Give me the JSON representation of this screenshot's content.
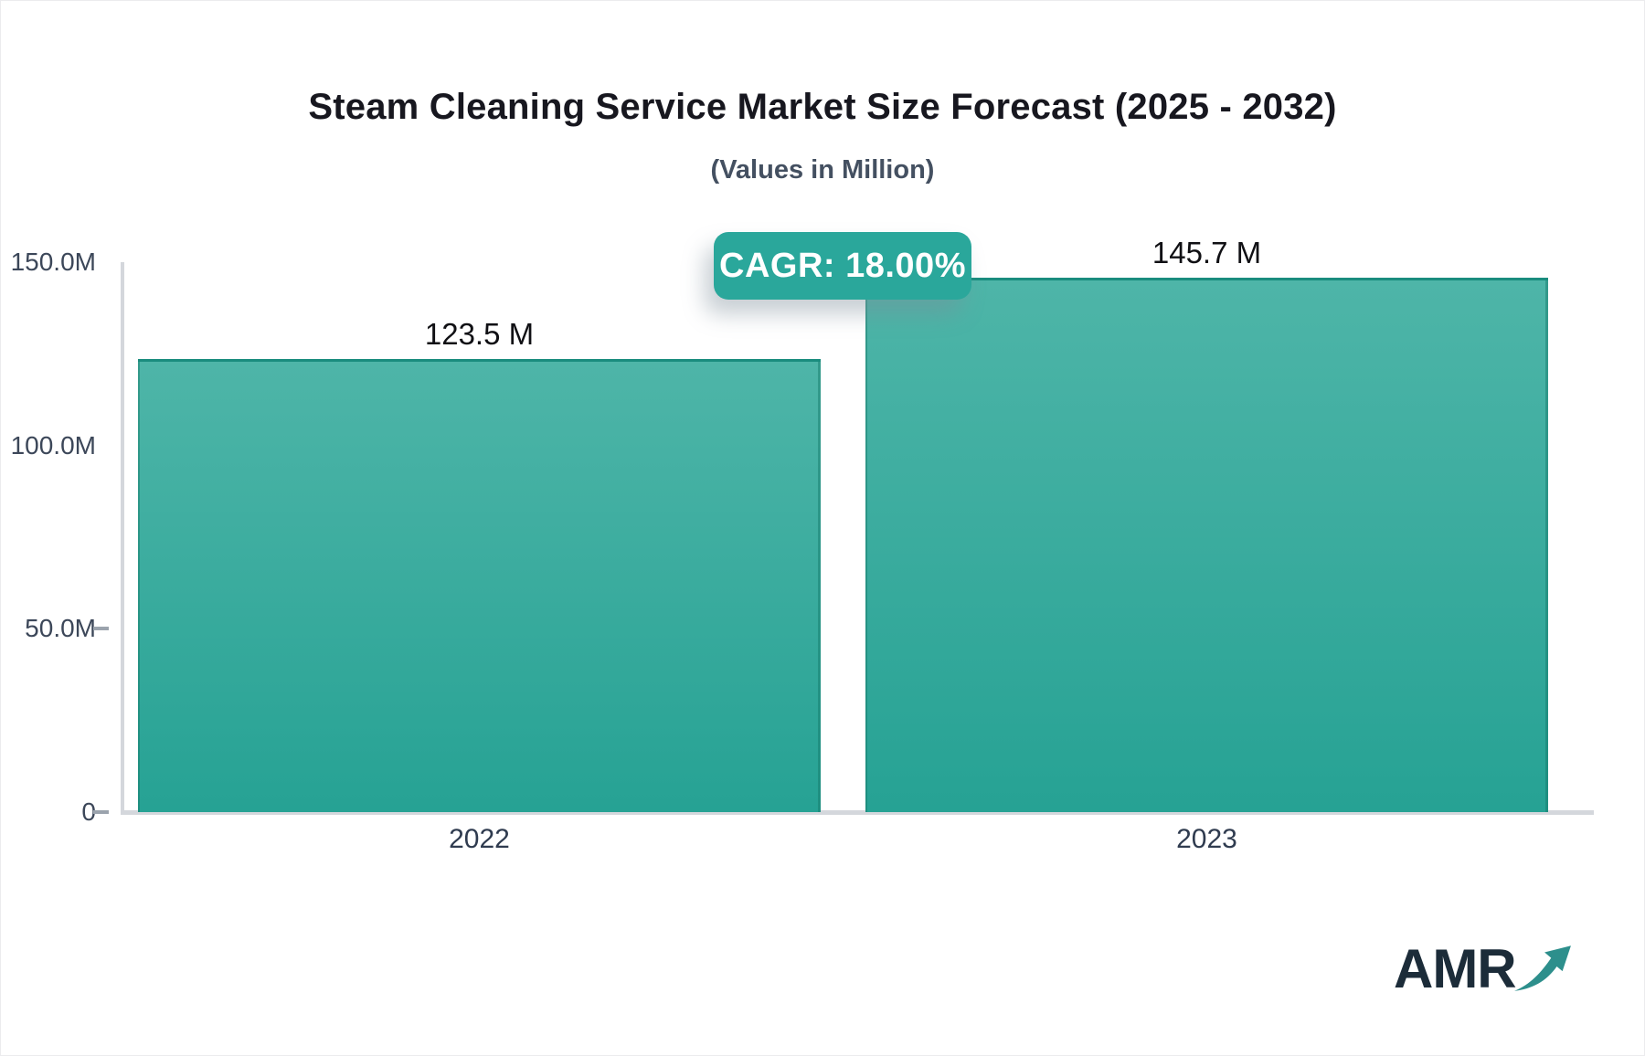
{
  "header": {
    "title": "Steam Cleaning Service Market Size Forecast (2025 - 2032)",
    "subtitle": "(Values in Million)"
  },
  "badge": {
    "label": "CAGR: 18.00%"
  },
  "logo": {
    "text": "AMR"
  },
  "chart_data": {
    "type": "bar",
    "title": "Steam Cleaning Service Market Size Forecast (2025 - 2032)",
    "subtitle": "(Values in Million)",
    "categories": [
      "2022",
      "2023"
    ],
    "values": [
      123.5,
      145.7
    ],
    "unit": "Million",
    "data_labels": [
      "123.5 M",
      "145.7 M"
    ],
    "cagr": "18.00%",
    "xlabel": "",
    "ylabel": "",
    "ylim": [
      0,
      150
    ],
    "yticks": [
      {
        "value": 150,
        "label": "150.0M"
      },
      {
        "value": 100,
        "label": "100.0M"
      },
      {
        "value": 50,
        "label": "50.0M"
      },
      {
        "value": 0,
        "label": "0"
      }
    ],
    "grid": false,
    "legend": false
  },
  "colors": {
    "bar_top": "#4eb5a8",
    "bar_bottom": "#26a294",
    "bar_edge": "#1a8c7e",
    "badge_bg": "#2aa79b",
    "axis_line": "#d4d7dc",
    "accent_teal": "#2d8f8c"
  }
}
